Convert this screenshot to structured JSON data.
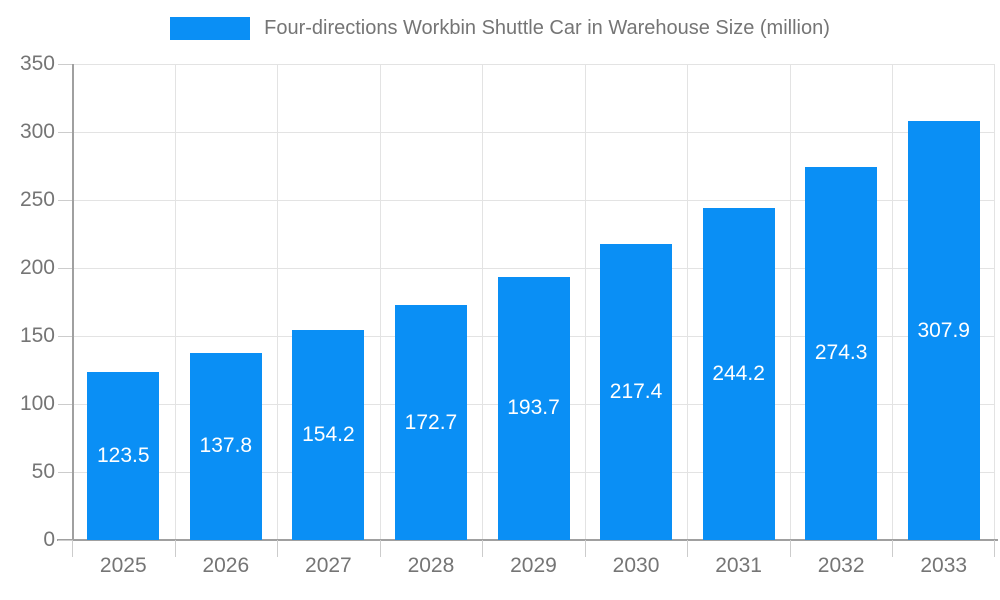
{
  "chart_data": {
    "type": "bar",
    "title": "Four-directions Workbin Shuttle Car in Warehouse Size (million)",
    "legend_position": "top",
    "categories": [
      "2025",
      "2026",
      "2027",
      "2028",
      "2029",
      "2030",
      "2031",
      "2032",
      "2033"
    ],
    "values": [
      123.5,
      137.8,
      154.2,
      172.7,
      193.7,
      217.4,
      244.2,
      274.3,
      307.9
    ],
    "xlabel": "",
    "ylabel": "",
    "ylim": [
      0,
      350
    ],
    "yticks": [
      0,
      50,
      100,
      150,
      200,
      250,
      300,
      350
    ],
    "grid": "both",
    "value_labels_position": "centered-inside-bar",
    "colors": {
      "bar": "#0a8ff5",
      "value_label_text": "#ffffff",
      "axis_text": "#757575",
      "grid_line": "#e3e3e3",
      "tick_mark": "#cccccc",
      "axis_line": "#a0a0a0",
      "background": "#ffffff"
    }
  }
}
